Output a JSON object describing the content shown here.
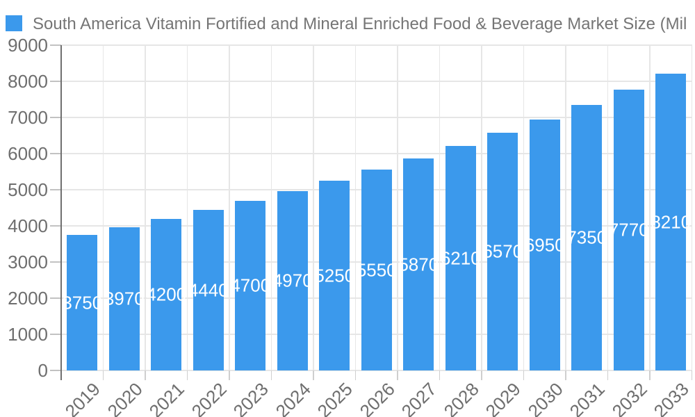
{
  "chart_data": {
    "type": "bar",
    "title": "South America Vitamin Fortified and Mineral Enriched Food & Beverage Market Size (Mil",
    "categories": [
      "2019",
      "2020",
      "2021",
      "2022",
      "2023",
      "2024",
      "2025",
      "2026",
      "2027",
      "2028",
      "2029",
      "2030",
      "2031",
      "2032",
      "2033"
    ],
    "values": [
      3750,
      3970,
      4200,
      4440,
      4700,
      4970,
      5250,
      5550,
      5870,
      6210,
      6570,
      6950,
      7350,
      7770,
      8210
    ],
    "yticks": [
      0,
      1000,
      2000,
      3000,
      4000,
      5000,
      6000,
      7000,
      8000,
      9000
    ],
    "ylim": [
      0,
      9000
    ],
    "xlabel": "",
    "ylabel": "",
    "grid": true,
    "legend_position": "top-left",
    "bar_color": "#3b99ec",
    "bar_value_label_color": "#ffffff",
    "axis_text_color": "#6e6e6e",
    "title_color": "#757575",
    "gridline_color": "#e6e6e6"
  }
}
